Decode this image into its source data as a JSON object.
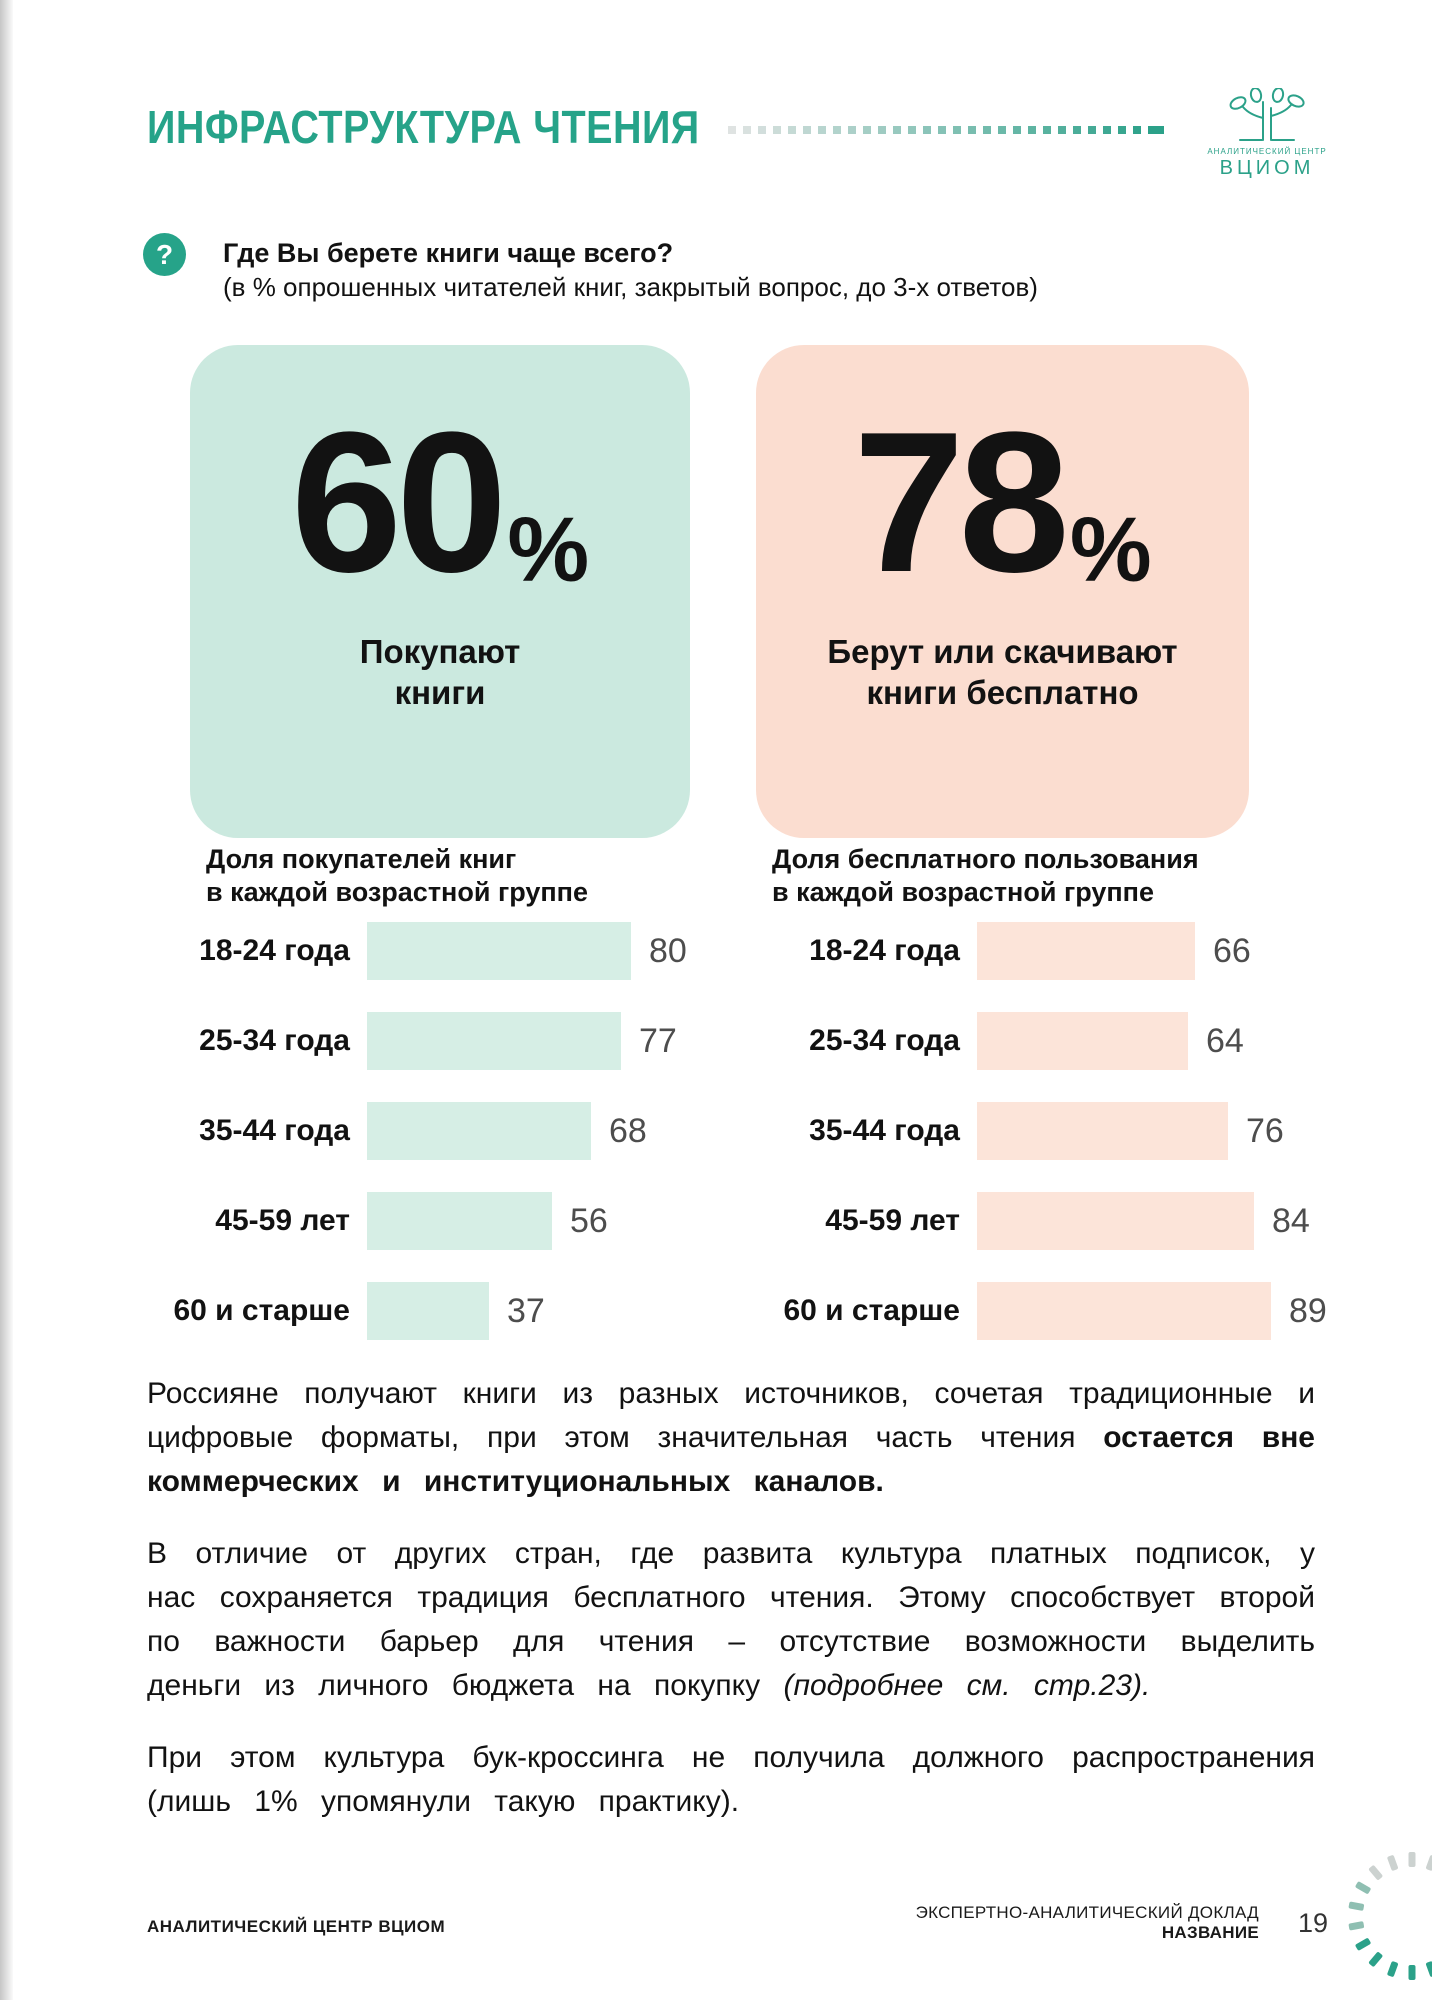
{
  "header": {
    "title": "ИНФРАСТРУКТУРА ЧТЕНИЯ"
  },
  "logo": {
    "caption": "АНАЛИТИЧЕСКИЙ ЦЕНТР",
    "brand": "ВЦИОМ"
  },
  "question": {
    "icon_glyph": "?",
    "title": "Где Вы берете книги чаще всего?",
    "subtitle": "(в % опрошенных читателей книг, закрытый вопрос, до 3-х ответов)"
  },
  "highlight_cards": [
    {
      "value": "60",
      "percent_sign": "%",
      "label_line1": "Покупают",
      "label_line2": "книги"
    },
    {
      "value": "78",
      "percent_sign": "%",
      "label_line1": "Берут или скачивают",
      "label_line2": "книги бесплатно"
    }
  ],
  "chart_data": [
    {
      "type": "bar",
      "orientation": "horizontal",
      "title_line1": "Доля покупателей книг",
      "title_line2": "в каждой возрастной группе",
      "categories": [
        "18-24 года",
        "25-34 года",
        "35-44 года",
        "45-59 лет",
        "60 и старше"
      ],
      "values": [
        80,
        77,
        68,
        56,
        37
      ],
      "xlim": [
        0,
        100
      ],
      "bar_color": "#D6EEE5",
      "value_color": "#4D4D4D"
    },
    {
      "type": "bar",
      "orientation": "horizontal",
      "title_line1": "Доля бесплатного пользования",
      "title_line2": "в каждой возрастной группе",
      "categories": [
        "18-24 года",
        "25-34 года",
        "35-44 года",
        "45-59 лет",
        "60 и старше"
      ],
      "values": [
        66,
        64,
        76,
        84,
        89
      ],
      "xlim": [
        0,
        100
      ],
      "bar_color": "#FCE4D9",
      "value_color": "#4D4D4D"
    }
  ],
  "paragraphs": {
    "p1_normal": "Россияне получают книги из разных источников, сочетая традиционные и цифровые форматы, при этом значительная часть чтения ",
    "p1_bold": "остается вне коммерческих и институциональных каналов.",
    "p2_normal": "В отличие от других стран, где развита культура платных подписок, у нас сохраняется традиция бесплатного чтения. Этому способствует второй по важности барьер для чтения – отсутствие возможности выделить деньги из личного бюджета на покупку ",
    "p2_italic": "(подробнее см. стр.23).",
    "p3": "При этом культура бук-кроссинга не получила должного распространения (лишь 1% упомянули такую практику)."
  },
  "footer": {
    "left": "АНАЛИТИЧЕСКИЙ ЦЕНТР ВЦИОМ",
    "right_line1": "ЭКСПЕРТНО-АНАЛИТИЧЕСКИЙ ДОКЛАД",
    "right_line2": "НАЗВАНИЕ",
    "page_number": "19"
  },
  "colors": {
    "accent_teal": "#26A389",
    "mint_card": "#CBE9DF",
    "mint_bar": "#D6EEE5",
    "peach_card": "#FBDDD0",
    "peach_bar": "#FCE4D9",
    "dot_gray": "#DFE3E2"
  }
}
